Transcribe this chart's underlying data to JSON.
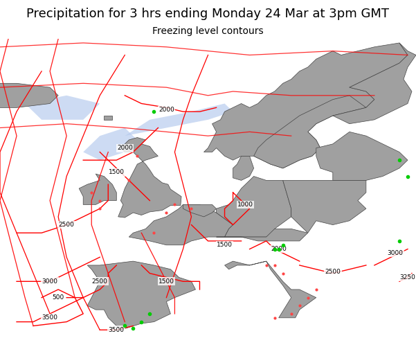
{
  "title": "Precipitation for 3 hrs ending Monday 24 Mar at 3pm GMT",
  "subtitle": "Freezing level contours",
  "title_fontsize": 13,
  "subtitle_fontsize": 10,
  "title_color": "#000000",
  "background_color": "#ffffff",
  "map_bg_color": "#dde8f5",
  "land_color": "#a0a0a0",
  "border_color": "#c0b090",
  "contour_color": "#ff0000",
  "contour_label_color": "#ffffff",
  "water_color": "#dde8f5",
  "fig_width": 6.01,
  "fig_height": 4.88,
  "dpi": 100
}
